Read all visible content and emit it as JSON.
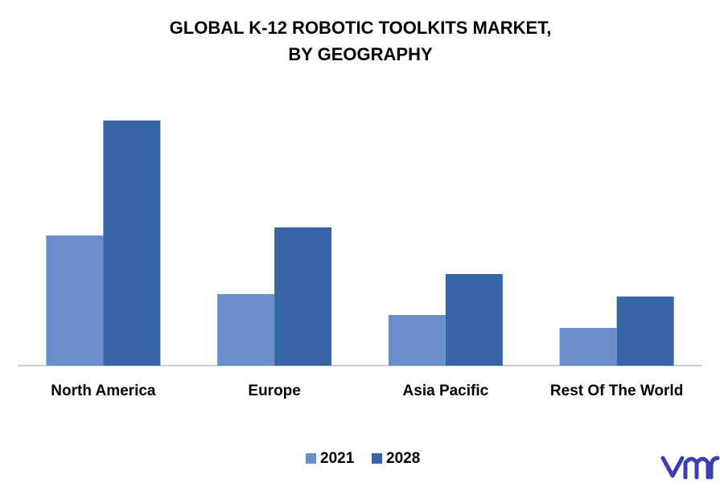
{
  "chart_data": {
    "type": "bar",
    "title": [
      "GLOBAL K-12 ROBOTIC TOOLKITS MARKET,",
      "BY GEOGRAPHY"
    ],
    "categories": [
      "North America",
      "Europe",
      "Asia Pacific",
      "Rest Of The World"
    ],
    "series": [
      {
        "name": "2021",
        "color": "#6a8fc8",
        "values": [
          162,
          89,
          63,
          47
        ]
      },
      {
        "name": "2028",
        "color": "#3765a6",
        "values": [
          305,
          172,
          114,
          86
        ]
      }
    ],
    "ylim": [
      0,
      320
    ]
  }
}
